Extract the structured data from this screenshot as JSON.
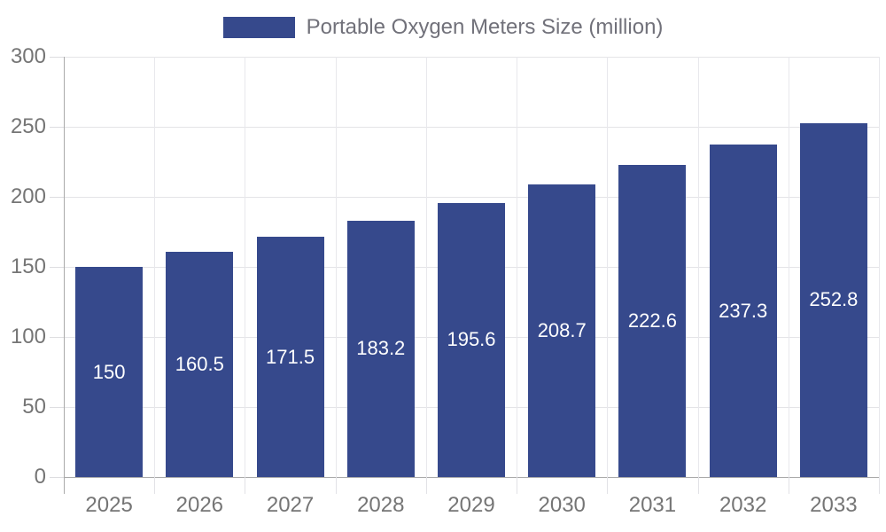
{
  "legend": {
    "label": "Portable Oxygen Meters Size (million)",
    "swatch_color": "#36498c"
  },
  "chart_data": {
    "type": "bar",
    "title": "",
    "series_name": "Portable Oxygen Meters Size (million)",
    "categories": [
      "2025",
      "2026",
      "2027",
      "2028",
      "2029",
      "2030",
      "2031",
      "2032",
      "2033"
    ],
    "values": [
      150,
      160.5,
      171.5,
      183.2,
      195.6,
      208.7,
      222.6,
      237.3,
      252.8
    ],
    "value_labels": [
      "150",
      "160.5",
      "171.5",
      "183.2",
      "195.6",
      "208.7",
      "222.6",
      "237.3",
      "252.8"
    ],
    "xlabel": "",
    "ylabel": "",
    "ylim": [
      0,
      300
    ],
    "yticks": [
      0,
      50,
      100,
      150,
      200,
      250,
      300
    ],
    "grid": true,
    "legend_position": "top-center",
    "value_label_position": "inside-center",
    "colors": {
      "bar": "#36498c",
      "value_label": "#ffffff",
      "axis_label": "#757575",
      "axis_line": "#aaaaaa",
      "gridline": "#e4e4e7"
    }
  }
}
